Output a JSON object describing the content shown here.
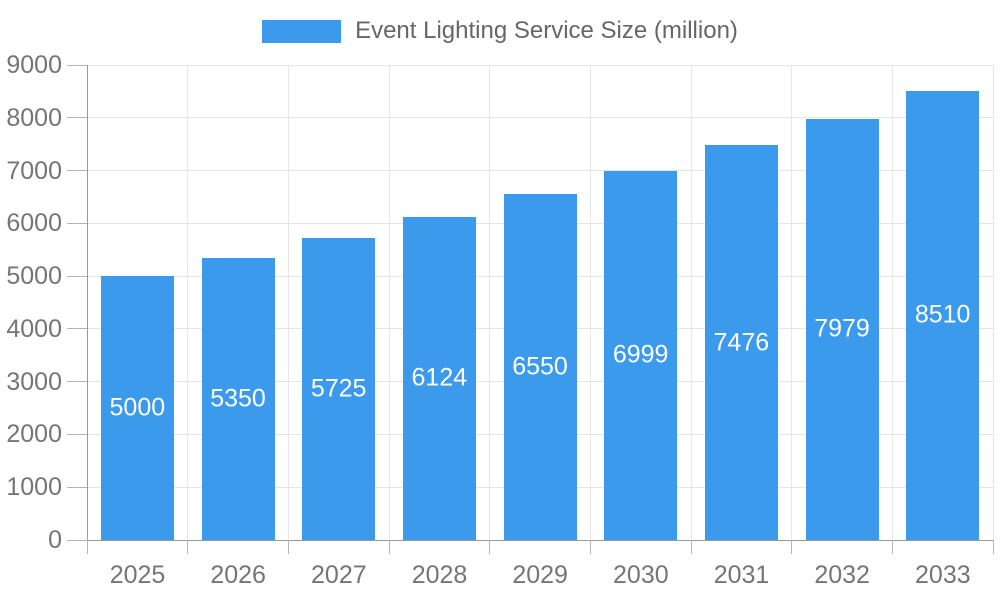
{
  "chart_data": {
    "type": "bar",
    "title": "",
    "legend": "Event Lighting Service Size (million)",
    "legend_position": "top",
    "categories": [
      "2025",
      "2026",
      "2027",
      "2028",
      "2029",
      "2030",
      "2031",
      "2032",
      "2033"
    ],
    "values": [
      5000,
      5350,
      5725,
      6124,
      6550,
      6999,
      7476,
      7979,
      8510
    ],
    "value_labels_position": "inside-center",
    "xlabel": "",
    "ylabel": "",
    "ylim": [
      0,
      9000
    ],
    "yticks": [
      0,
      1000,
      2000,
      3000,
      4000,
      5000,
      6000,
      7000,
      8000,
      9000
    ],
    "grid": true
  },
  "colors": {
    "background": "#FFFFFF",
    "bar": "#3B9AEC",
    "bar_value_label": "#FFFFFF",
    "axis_line": "#999999",
    "grid_line": "#E5E5E5",
    "tick_mark": "#B5B5B5",
    "tick_label": "#757575",
    "legend_text": "#666666"
  }
}
